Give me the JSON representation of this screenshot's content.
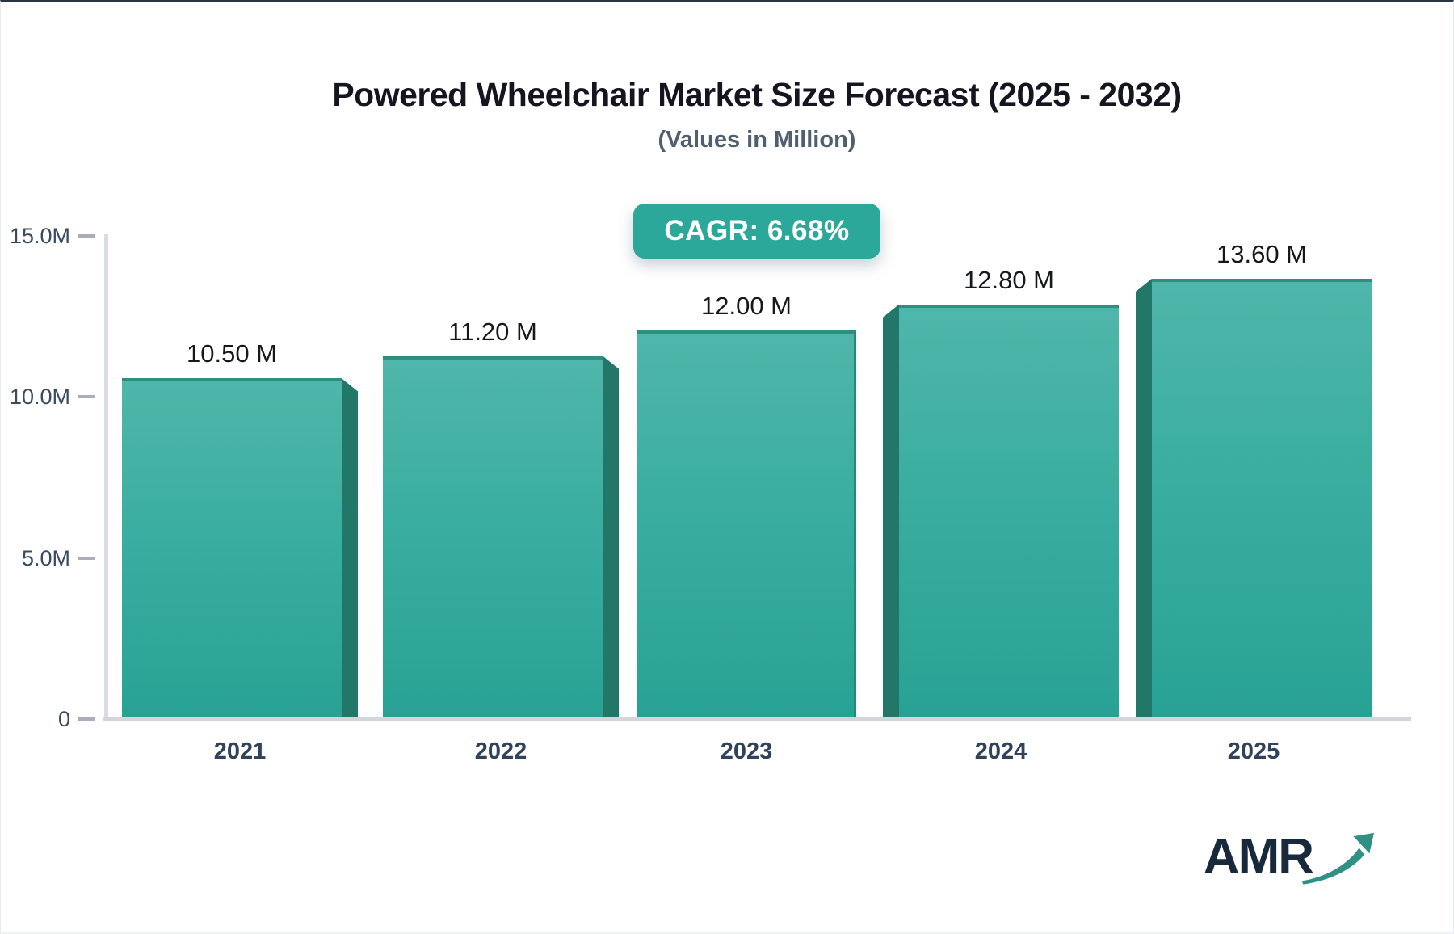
{
  "header": {
    "title": "Powered Wheelchair Market Size Forecast (2025 - 2032)",
    "subtitle": "(Values in Million)"
  },
  "badge": {
    "label": "CAGR: 6.68%"
  },
  "chart_data": {
    "type": "bar",
    "title": "Powered Wheelchair Market Size Forecast (2025 - 2032)",
    "subtitle": "(Values in Million)",
    "cagr_label": "CAGR: 6.68%",
    "categories": [
      "2021",
      "2022",
      "2023",
      "2024",
      "2025"
    ],
    "values": [
      10.5,
      11.2,
      12.0,
      12.8,
      13.6
    ],
    "value_labels": [
      "10.50 M",
      "11.20 M",
      "12.00 M",
      "12.80 M",
      "13.60 M"
    ],
    "unit": "Million",
    "xlabel": "",
    "ylabel": "",
    "ylim": [
      0,
      15
    ],
    "yticks": [
      "15.0M",
      "10.0M",
      "5.0M",
      "0"
    ],
    "ytick_values": [
      15,
      10,
      5,
      0
    ],
    "grid": false,
    "legend": false,
    "bevel_sides": [
      "right",
      "right",
      "none",
      "left",
      "left"
    ],
    "colors": {
      "bar_top": "#4fb6aa",
      "bar_bottom": "#28a294",
      "bar_side": "#237768",
      "badge_bg": "#2ba89a",
      "axis": "#d2d5db",
      "label_text": "#31435a"
    }
  },
  "logo": {
    "text": "AMR",
    "arrow_icon": "growth-arrow",
    "arrow_color": "#2f9184"
  }
}
